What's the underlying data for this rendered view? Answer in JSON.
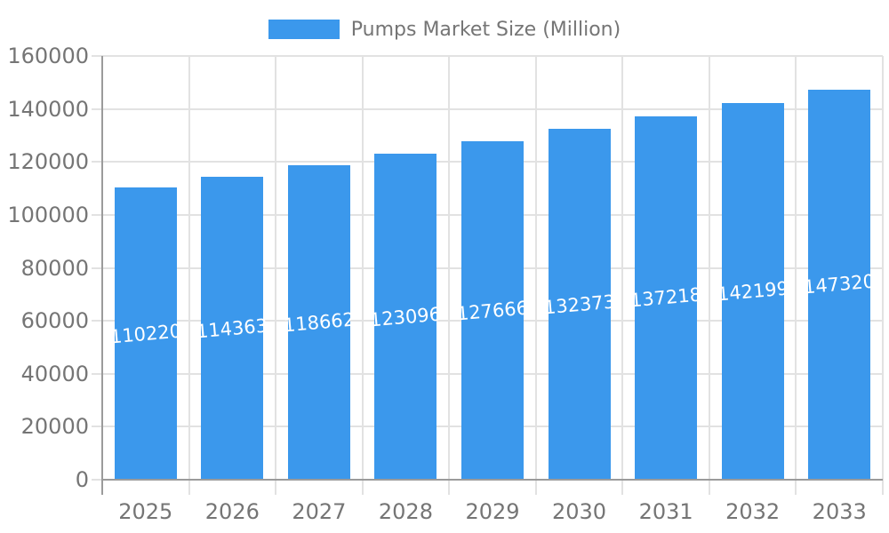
{
  "chart_data": {
    "type": "bar",
    "title": "",
    "legend_position": "top",
    "categories": [
      "2025",
      "2026",
      "2027",
      "2028",
      "2029",
      "2030",
      "2031",
      "2032",
      "2033"
    ],
    "series": [
      {
        "name": "Pumps Market Size (Million)",
        "values": [
          110220,
          114363,
          118662,
          123096,
          127666,
          132373,
          137218,
          142199,
          147320
        ]
      }
    ],
    "data_labels": [
      "110220",
      "114363",
      "118662",
      "123096",
      "127666",
      "132373",
      "137218",
      "142199",
      "147320"
    ],
    "ylim": [
      0,
      160000
    ],
    "yticks": [
      0,
      20000,
      40000,
      60000,
      80000,
      100000,
      120000,
      140000,
      160000
    ],
    "ytick_labels": [
      "0",
      "20000",
      "40000",
      "60000",
      "80000",
      "100000",
      "120000",
      "140000",
      "160000"
    ],
    "grid": true,
    "bar_color": "#3b98ec",
    "data_label_color": "#ffffff",
    "axis_text_color": "#757575",
    "gridline_color": "#e2e2e2",
    "axis_line_color": "#9b9b9b"
  }
}
